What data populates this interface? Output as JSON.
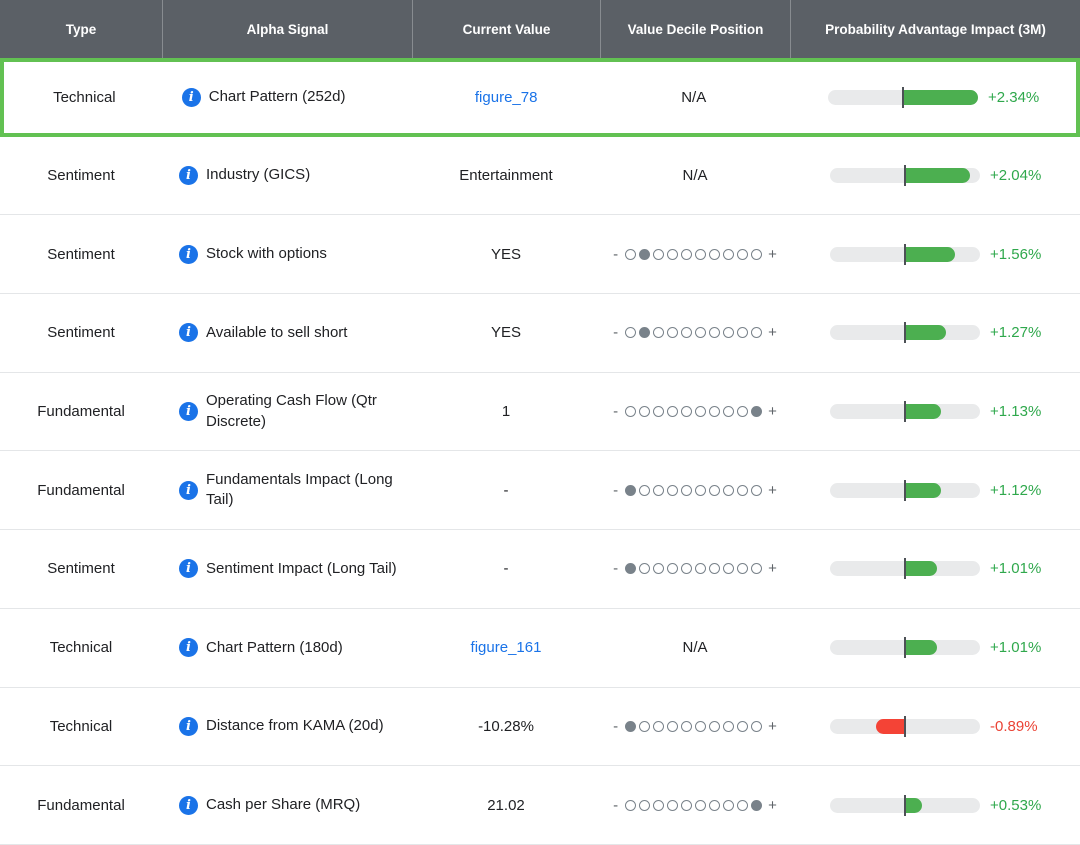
{
  "header": {
    "columns": [
      "Type",
      "Alpha Signal",
      "Current Value",
      "Value Decile Position",
      "Probability Advantage Impact (3M)"
    ]
  },
  "labels": {
    "not_applicable": "N/A",
    "decile_minus": "-",
    "decile_plus": "+",
    "info_icon_glyph": "i"
  },
  "bar": {
    "max_pct": 2.34,
    "decile_count": 10
  },
  "colors": {
    "header_bg": "#5b6066",
    "highlight_border": "#62c152",
    "bar_green": "#4caf50",
    "bar_red": "#f44336",
    "text_green": "#2fa84c",
    "text_red": "#ea4335",
    "link_blue": "#1a73e8",
    "info_icon_blue": "#1a73e8",
    "track_gray": "#e9eaeb",
    "dot_gray": "#79828a"
  },
  "rows": [
    {
      "type": "Technical",
      "signal": "Chart Pattern (252d)",
      "value": "figure_78",
      "value_is_link": true,
      "decile_filled": 0,
      "impact": "+2.34%",
      "impact_pct": 2.34,
      "highlighted": true
    },
    {
      "type": "Sentiment",
      "signal": "Industry (GICS)",
      "value": "Entertainment",
      "value_is_link": false,
      "decile_filled": 0,
      "impact": "+2.04%",
      "impact_pct": 2.04,
      "highlighted": false
    },
    {
      "type": "Sentiment",
      "signal": "Stock with options",
      "value": "YES",
      "value_is_link": false,
      "decile_filled": 2,
      "impact": "+1.56%",
      "impact_pct": 1.56,
      "highlighted": false
    },
    {
      "type": "Sentiment",
      "signal": "Available to sell short",
      "value": "YES",
      "value_is_link": false,
      "decile_filled": 2,
      "impact": "+1.27%",
      "impact_pct": 1.27,
      "highlighted": false
    },
    {
      "type": "Fundamental",
      "signal": "Operating Cash Flow (Qtr Discrete)",
      "value": "1",
      "value_is_link": false,
      "decile_filled": 10,
      "impact": "+1.13%",
      "impact_pct": 1.13,
      "highlighted": false
    },
    {
      "type": "Fundamental",
      "signal": "Fundamentals Impact (Long Tail)",
      "value": "-",
      "value_is_link": false,
      "decile_filled": 1,
      "impact": "+1.12%",
      "impact_pct": 1.12,
      "highlighted": false
    },
    {
      "type": "Sentiment",
      "signal": "Sentiment Impact (Long Tail)",
      "value": "-",
      "value_is_link": false,
      "decile_filled": 1,
      "impact": "+1.01%",
      "impact_pct": 1.01,
      "highlighted": false
    },
    {
      "type": "Technical",
      "signal": "Chart Pattern (180d)",
      "value": "figure_161",
      "value_is_link": true,
      "decile_filled": 0,
      "impact": "+1.01%",
      "impact_pct": 1.01,
      "highlighted": false
    },
    {
      "type": "Technical",
      "signal": "Distance from KAMA (20d)",
      "value": "-10.28%",
      "value_is_link": false,
      "decile_filled": 1,
      "impact": "-0.89%",
      "impact_pct": -0.89,
      "highlighted": false
    },
    {
      "type": "Fundamental",
      "signal": "Cash per Share (MRQ)",
      "value": "21.02",
      "value_is_link": false,
      "decile_filled": 10,
      "impact": "+0.53%",
      "impact_pct": 0.53,
      "highlighted": false
    }
  ]
}
